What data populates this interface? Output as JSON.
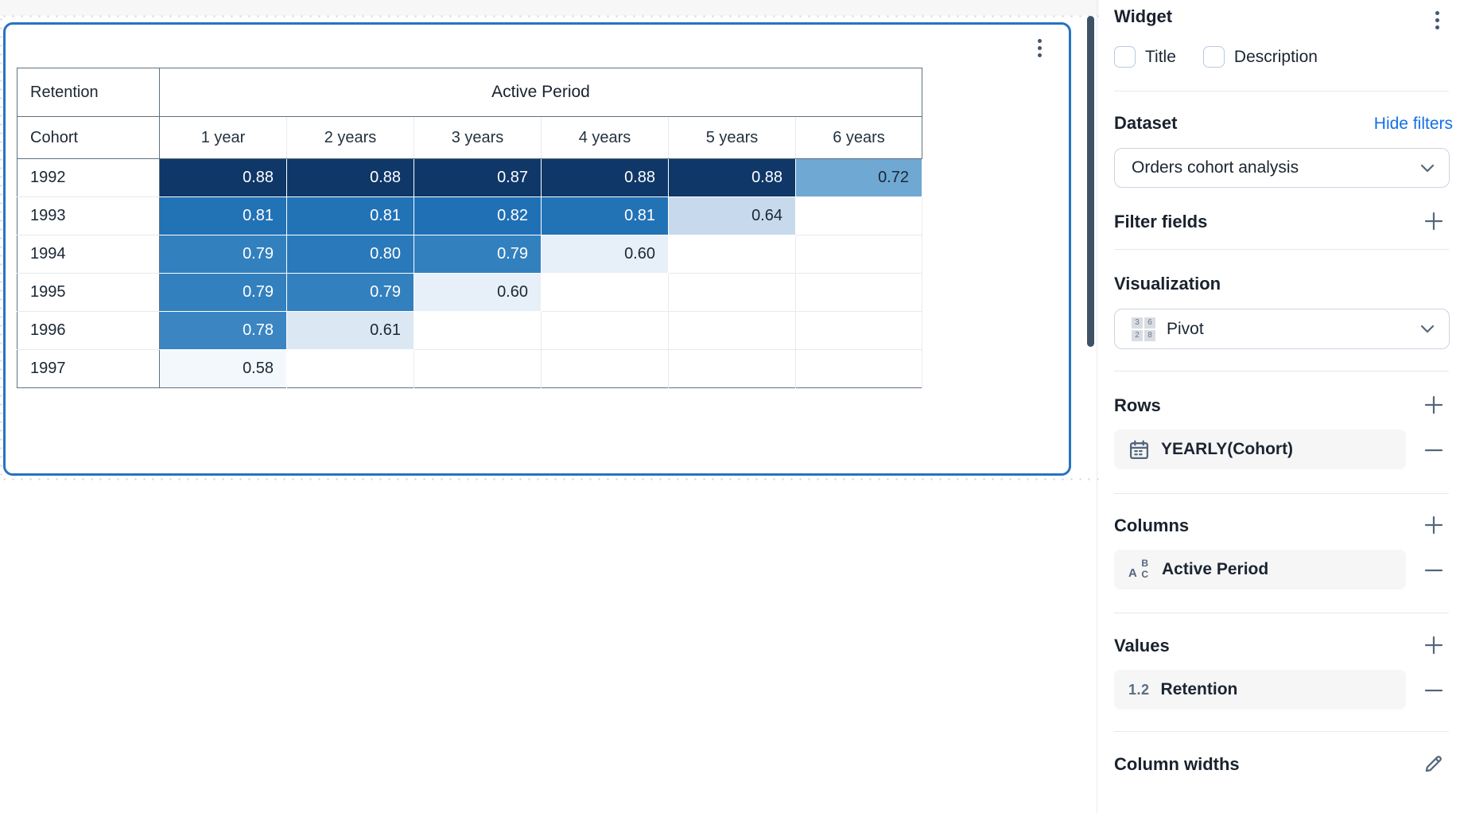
{
  "canvas": {
    "widget_menu_icon": "kebab-menu",
    "pivot": {
      "corner_label": "Retention",
      "group_header": "Active Period",
      "row_dim_label": "Cohort",
      "col_headers": [
        "1 year",
        "2 years",
        "3 years",
        "4 years",
        "5 years",
        "6 years"
      ],
      "rows": [
        {
          "cohort": "1992",
          "cells": [
            {
              "v": "0.88",
              "bg": "#0f3768",
              "fg": "#ffffff"
            },
            {
              "v": "0.88",
              "bg": "#0f3768",
              "fg": "#ffffff"
            },
            {
              "v": "0.87",
              "bg": "#0f3768",
              "fg": "#ffffff"
            },
            {
              "v": "0.88",
              "bg": "#0f3768",
              "fg": "#ffffff"
            },
            {
              "v": "0.88",
              "bg": "#0f3768",
              "fg": "#ffffff"
            },
            {
              "v": "0.72",
              "bg": "#6fa8d3",
              "fg": "#1c2734"
            }
          ]
        },
        {
          "cohort": "1993",
          "cells": [
            {
              "v": "0.81",
              "bg": "#2272b6",
              "fg": "#ffffff"
            },
            {
              "v": "0.81",
              "bg": "#2272b6",
              "fg": "#ffffff"
            },
            {
              "v": "0.82",
              "bg": "#2070b5",
              "fg": "#ffffff"
            },
            {
              "v": "0.81",
              "bg": "#2272b6",
              "fg": "#ffffff"
            },
            {
              "v": "0.64",
              "bg": "#c7daed",
              "fg": "#1c2734"
            },
            null
          ]
        },
        {
          "cohort": "1994",
          "cells": [
            {
              "v": "0.79",
              "bg": "#3380bf",
              "fg": "#ffffff"
            },
            {
              "v": "0.80",
              "bg": "#2a79ba",
              "fg": "#ffffff"
            },
            {
              "v": "0.79",
              "bg": "#3380bf",
              "fg": "#ffffff"
            },
            {
              "v": "0.60",
              "bg": "#e7eff8",
              "fg": "#1c2734"
            },
            null,
            null
          ]
        },
        {
          "cohort": "1995",
          "cells": [
            {
              "v": "0.79",
              "bg": "#3380bf",
              "fg": "#ffffff"
            },
            {
              "v": "0.79",
              "bg": "#3380bf",
              "fg": "#ffffff"
            },
            {
              "v": "0.60",
              "bg": "#e7eff8",
              "fg": "#1c2734"
            },
            null,
            null,
            null
          ]
        },
        {
          "cohort": "1996",
          "cells": [
            {
              "v": "0.78",
              "bg": "#3b85c2",
              "fg": "#ffffff"
            },
            {
              "v": "0.61",
              "bg": "#dbe8f4",
              "fg": "#1c2734"
            },
            null,
            null,
            null,
            null
          ]
        },
        {
          "cohort": "1997",
          "cells": [
            {
              "v": "0.58",
              "bg": "#f3f8fc",
              "fg": "#1c2734"
            },
            null,
            null,
            null,
            null,
            null
          ]
        }
      ]
    }
  },
  "panel": {
    "title": "Widget",
    "menu_icon": "kebab-menu",
    "checkboxes": {
      "title_label": "Title",
      "description_label": "Description"
    },
    "dataset": {
      "heading": "Dataset",
      "link_label": "Hide filters",
      "selected": "Orders cohort analysis"
    },
    "filter_fields": {
      "heading": "Filter fields",
      "add_icon": "plus-icon"
    },
    "visualization": {
      "heading": "Visualization",
      "selected": "Pivot",
      "icon_digits": [
        "3",
        "6",
        "2",
        "8"
      ]
    },
    "rows_section": {
      "heading": "Rows",
      "item_label": "YEARLY(Cohort)",
      "item_icon": "calendar-icon"
    },
    "columns_section": {
      "heading": "Columns",
      "item_label": "Active Period",
      "item_icon": "abc-icon"
    },
    "values_section": {
      "heading": "Values",
      "item_label": "Retention",
      "item_icon_text": "1.2"
    },
    "column_widths": {
      "heading": "Column widths",
      "edit_icon": "pencil-icon"
    }
  },
  "colors": {
    "widget_selection_border": "#2673c2",
    "table_outer_border": "#5d7183",
    "link_blue": "#1470e6",
    "scrollbar_thumb": "#3f5265",
    "pill_background": "#f6f6f7"
  },
  "chart_data": {
    "type": "heatmap",
    "title": "Retention",
    "column_group": "Active Period",
    "row_label": "Cohort",
    "x": [
      "1 year",
      "2 years",
      "3 years",
      "4 years",
      "5 years",
      "6 years"
    ],
    "y": [
      "1992",
      "1993",
      "1994",
      "1995",
      "1996",
      "1997"
    ],
    "values": [
      [
        0.88,
        0.88,
        0.87,
        0.88,
        0.88,
        0.72
      ],
      [
        0.81,
        0.81,
        0.82,
        0.81,
        0.64,
        null
      ],
      [
        0.79,
        0.8,
        0.79,
        0.6,
        null,
        null
      ],
      [
        0.79,
        0.79,
        0.6,
        null,
        null,
        null
      ],
      [
        0.78,
        0.61,
        null,
        null,
        null,
        null
      ],
      [
        0.58,
        null,
        null,
        null,
        null,
        null
      ]
    ]
  }
}
